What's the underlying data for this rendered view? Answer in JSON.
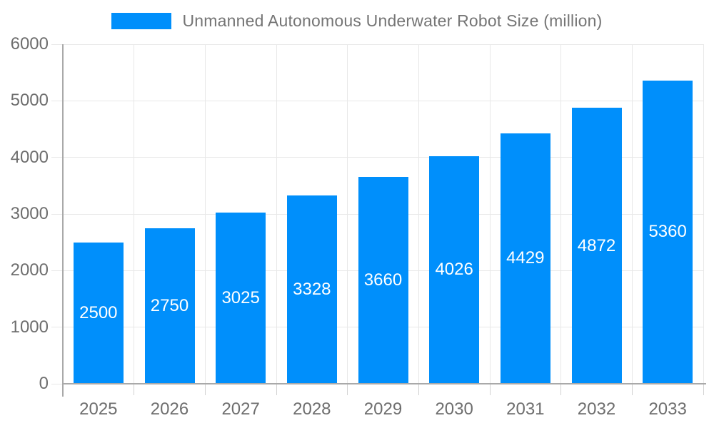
{
  "chart_data": {
    "type": "bar",
    "title": "Unmanned Autonomous Underwater Robot Size (million)",
    "legend": [
      "Unmanned Autonomous Underwater Robot Size (million)"
    ],
    "legend_position": "top",
    "categories": [
      "2025",
      "2026",
      "2027",
      "2028",
      "2029",
      "2030",
      "2031",
      "2032",
      "2033"
    ],
    "values": [
      2500,
      2750,
      3025,
      3328,
      3660,
      4026,
      4429,
      4872,
      5360
    ],
    "data_labels": [
      "2500",
      "2750",
      "3025",
      "3328",
      "3660",
      "4026",
      "4429",
      "4872",
      "5360"
    ],
    "data_label_position": "inside-center",
    "xlabel": "",
    "ylabel": "",
    "ylim": [
      0,
      6000
    ],
    "ytick_step": 1000,
    "ytick_labels": [
      "0",
      "1000",
      "2000",
      "3000",
      "4000",
      "5000",
      "6000"
    ],
    "grid": true,
    "colors": {
      "bar": "#008FFB",
      "value_label": "#ffffff",
      "axis_label": "#6e6e6e",
      "legend_label": "#757575",
      "gridline": "#e8e8e8",
      "axis_line": "#a9a9a9",
      "background": "#ffffff"
    }
  }
}
